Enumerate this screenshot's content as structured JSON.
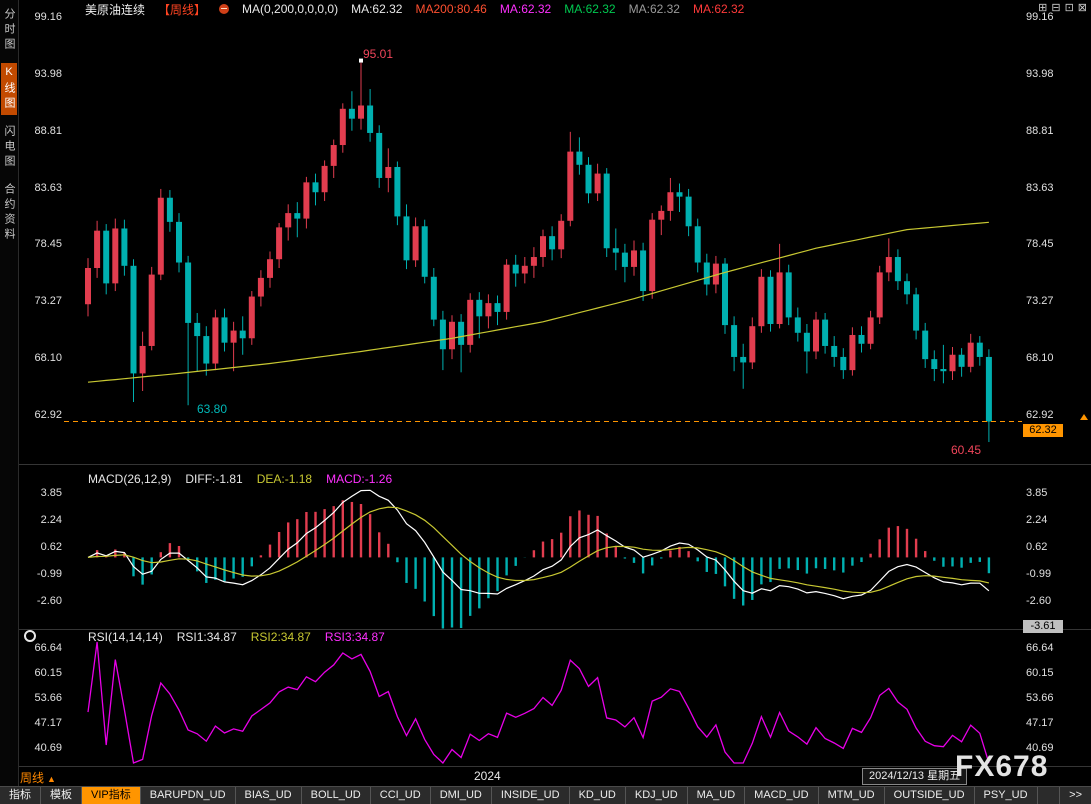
{
  "sidebar": {
    "items": [
      {
        "key": "time-chart",
        "label": "分时图",
        "active": false
      },
      {
        "key": "kline-chart",
        "label": "K线图",
        "active": true
      },
      {
        "key": "lightning-chart",
        "label": "闪电图",
        "active": false
      },
      {
        "key": "contract-info",
        "label": "合约资料",
        "active": false
      }
    ]
  },
  "titlebar": {
    "symbol": "美原油连续",
    "period": "【周线】",
    "ma_params": "MA(0,200,0,0,0,0)",
    "ma_values": [
      {
        "label": "MA:62.32",
        "color": "#e8e8e8"
      },
      {
        "label": "MA200:80.46",
        "color": "#ff5030"
      },
      {
        "label": "MA:62.32",
        "color": "#ff30ff"
      },
      {
        "label": "MA:62.32",
        "color": "#00c850"
      },
      {
        "label": "MA:62.32",
        "color": "#9a9a9a"
      },
      {
        "label": "MA:62.32",
        "color": "#ff3a3a"
      }
    ],
    "window_icons": [
      {
        "name": "quad-grid-layout-icon",
        "glyph": "⊞"
      },
      {
        "name": "horizontal-split-layout-icon",
        "glyph": "⊟"
      },
      {
        "name": "vertical-split-layout-icon",
        "glyph": "⊡"
      },
      {
        "name": "single-pane-layout-icon",
        "glyph": "⊠"
      }
    ]
  },
  "colors": {
    "up": "#e23d4f",
    "down": "#00b0b0",
    "ma200_line": "#c8c832",
    "diff_line": "#ffffff",
    "dea_line": "#c8c832",
    "rsi_line": "#e800e8",
    "accent": "#ff9500"
  },
  "chart_data": [
    {
      "type": "candlestick",
      "title": "美原油连续 周线",
      "x_tick": "2024",
      "ylim": [
        60,
        100
      ],
      "y_ticks": [
        "99.16",
        "93.98",
        "88.81",
        "83.63",
        "78.45",
        "73.27",
        "68.10",
        "62.92"
      ],
      "annotations": {
        "high": "95.01",
        "low": "63.80",
        "last_low": "60.45",
        "last_price": "62.32"
      },
      "ma200": {
        "period": 200,
        "last": "80.46",
        "points": [
          [
            0,
            65.9
          ],
          [
            10,
            66.7
          ],
          [
            20,
            67.6
          ],
          [
            30,
            68.7
          ],
          [
            40,
            69.9
          ],
          [
            50,
            71.4
          ],
          [
            60,
            73.5
          ],
          [
            70,
            75.9
          ],
          [
            80,
            78.1
          ],
          [
            90,
            79.8
          ],
          [
            99,
            80.46
          ]
        ]
      },
      "candles": [
        [
          73.0,
          77.2,
          71.9,
          76.3
        ],
        [
          76.3,
          80.6,
          75.4,
          79.7
        ],
        [
          79.7,
          80.3,
          73.9,
          74.9
        ],
        [
          74.9,
          80.8,
          74.2,
          79.9
        ],
        [
          79.9,
          80.7,
          75.6,
          76.5
        ],
        [
          76.5,
          77.1,
          64.1,
          66.7
        ],
        [
          66.7,
          70.5,
          65.1,
          69.2
        ],
        [
          69.2,
          76.4,
          68.8,
          75.7
        ],
        [
          75.7,
          83.5,
          75.2,
          82.7
        ],
        [
          82.7,
          83.4,
          79.6,
          80.5
        ],
        [
          80.5,
          81.3,
          75.9,
          76.8
        ],
        [
          76.8,
          77.4,
          63.8,
          71.3
        ],
        [
          71.3,
          72.2,
          66.9,
          70.1
        ],
        [
          70.1,
          71.0,
          66.5,
          67.6
        ],
        [
          67.6,
          72.5,
          67.0,
          71.8
        ],
        [
          71.8,
          72.6,
          68.7,
          69.5
        ],
        [
          69.5,
          71.4,
          66.9,
          70.6
        ],
        [
          70.6,
          71.9,
          68.4,
          69.9
        ],
        [
          69.9,
          74.2,
          69.3,
          73.7
        ],
        [
          73.7,
          76.1,
          72.8,
          75.4
        ],
        [
          75.4,
          77.8,
          74.5,
          77.1
        ],
        [
          77.1,
          80.4,
          76.3,
          80.0
        ],
        [
          80.0,
          82.1,
          78.8,
          81.3
        ],
        [
          81.3,
          82.3,
          79.1,
          80.8
        ],
        [
          80.8,
          84.6,
          79.9,
          84.1
        ],
        [
          84.1,
          84.9,
          82.0,
          83.2
        ],
        [
          83.2,
          86.1,
          82.4,
          85.6
        ],
        [
          85.6,
          88.0,
          84.5,
          87.5
        ],
        [
          87.5,
          91.3,
          86.8,
          90.8
        ],
        [
          90.8,
          92.4,
          88.8,
          89.9
        ],
        [
          89.9,
          95.01,
          88.9,
          91.1
        ],
        [
          91.1,
          92.6,
          87.8,
          88.6
        ],
        [
          88.6,
          89.3,
          83.6,
          84.5
        ],
        [
          84.5,
          87.2,
          83.2,
          85.5
        ],
        [
          85.5,
          86.0,
          80.2,
          81.0
        ],
        [
          81.0,
          82.1,
          76.2,
          77.0
        ],
        [
          77.0,
          80.9,
          76.4,
          80.1
        ],
        [
          80.1,
          80.7,
          74.9,
          75.5
        ],
        [
          75.5,
          76.3,
          71.0,
          71.6
        ],
        [
          71.6,
          72.4,
          67.0,
          68.9
        ],
        [
          68.9,
          72.0,
          68.0,
          71.4
        ],
        [
          71.4,
          72.1,
          66.8,
          69.3
        ],
        [
          69.3,
          74.0,
          68.6,
          73.4
        ],
        [
          73.4,
          74.1,
          69.9,
          71.9
        ],
        [
          71.9,
          73.9,
          70.8,
          73.1
        ],
        [
          73.1,
          73.8,
          71.1,
          72.3
        ],
        [
          72.3,
          77.1,
          71.6,
          76.6
        ],
        [
          76.6,
          77.5,
          74.6,
          75.8
        ],
        [
          75.8,
          77.3,
          74.9,
          76.5
        ],
        [
          76.5,
          78.2,
          75.4,
          77.3
        ],
        [
          77.3,
          79.8,
          76.4,
          79.2
        ],
        [
          79.2,
          80.1,
          77.0,
          78.0
        ],
        [
          78.0,
          81.2,
          77.2,
          80.6
        ],
        [
          80.6,
          88.7,
          80.1,
          86.9
        ],
        [
          86.9,
          88.2,
          84.8,
          85.7
        ],
        [
          85.7,
          86.4,
          82.2,
          83.1
        ],
        [
          83.1,
          85.8,
          82.4,
          84.9
        ],
        [
          84.9,
          85.4,
          77.3,
          78.1
        ],
        [
          78.1,
          79.9,
          76.1,
          77.7
        ],
        [
          77.7,
          78.5,
          75.0,
          76.4
        ],
        [
          76.4,
          78.8,
          75.6,
          77.9
        ],
        [
          77.9,
          78.6,
          73.3,
          74.2
        ],
        [
          74.2,
          81.3,
          73.5,
          80.7
        ],
        [
          80.7,
          82.0,
          79.3,
          81.5
        ],
        [
          81.5,
          84.5,
          80.6,
          83.2
        ],
        [
          83.2,
          84.0,
          81.4,
          82.8
        ],
        [
          82.8,
          83.5,
          79.2,
          80.1
        ],
        [
          80.1,
          80.8,
          75.9,
          76.8
        ],
        [
          76.8,
          77.6,
          73.8,
          74.8
        ],
        [
          74.8,
          77.4,
          74.0,
          76.7
        ],
        [
          76.7,
          77.2,
          70.3,
          71.1
        ],
        [
          71.1,
          71.9,
          66.9,
          68.2
        ],
        [
          68.2,
          69.4,
          65.3,
          67.7
        ],
        [
          67.7,
          71.8,
          67.1,
          71.0
        ],
        [
          71.0,
          76.2,
          70.4,
          75.5
        ],
        [
          75.5,
          76.1,
          70.5,
          71.2
        ],
        [
          71.2,
          78.5,
          70.8,
          75.9
        ],
        [
          75.9,
          76.6,
          71.1,
          71.8
        ],
        [
          71.8,
          72.7,
          69.6,
          70.4
        ],
        [
          70.4,
          71.2,
          66.7,
          68.7
        ],
        [
          68.7,
          72.3,
          68.0,
          71.6
        ],
        [
          71.6,
          72.2,
          68.5,
          69.2
        ],
        [
          69.2,
          70.1,
          67.3,
          68.2
        ],
        [
          68.2,
          69.0,
          66.2,
          67.0
        ],
        [
          67.0,
          70.9,
          66.5,
          70.2
        ],
        [
          70.2,
          71.0,
          68.6,
          69.4
        ],
        [
          69.4,
          72.4,
          68.9,
          71.8
        ],
        [
          71.8,
          76.5,
          71.2,
          75.9
        ],
        [
          75.9,
          79.0,
          75.1,
          77.3
        ],
        [
          77.3,
          78.0,
          74.3,
          75.1
        ],
        [
          75.1,
          75.8,
          73.0,
          73.9
        ],
        [
          73.9,
          74.5,
          69.8,
          70.6
        ],
        [
          70.6,
          71.3,
          67.2,
          68.0
        ],
        [
          68.0,
          68.8,
          66.0,
          67.1
        ],
        [
          67.1,
          69.3,
          65.8,
          66.9
        ],
        [
          66.9,
          69.1,
          66.1,
          68.4
        ],
        [
          68.4,
          69.0,
          66.4,
          67.3
        ],
        [
          67.3,
          70.3,
          66.8,
          69.5
        ],
        [
          69.5,
          70.1,
          67.4,
          68.2
        ],
        [
          68.2,
          68.9,
          60.45,
          62.32
        ]
      ]
    },
    {
      "type": "bar",
      "name": "MACD",
      "labels": {
        "title": "MACD(26,12,9)",
        "diff": "DIFF:-1.81",
        "dea": "DEA:-1.18",
        "macd": "MACD:-1.26"
      },
      "y_ticks": [
        "3.85",
        "2.24",
        "0.62",
        "-0.99",
        "-2.60"
      ],
      "min_badge": "-3.61",
      "ylim": [
        -3.61,
        3.85
      ],
      "computed_from": "candles closes, EMA(12,26), DEA=EMA9(DIFF), MACD=2*(DIFF-DEA)"
    },
    {
      "type": "line",
      "name": "RSI",
      "labels": {
        "title": "RSI(14,14,14)",
        "rsi1": "RSI1:34.87",
        "rsi2": "RSI2:34.87",
        "rsi3": "RSI3:34.87"
      },
      "y_ticks": [
        "66.64",
        "60.15",
        "53.66",
        "47.17",
        "40.69"
      ],
      "ylim": [
        36,
        70
      ],
      "computed_from": "candles closes, Wilder RSI(14)"
    }
  ],
  "footer": {
    "period_label": "周线",
    "period_arrow": "▲",
    "date": "2024/12/13 星期五",
    "watermark": "FX678",
    "tabs": [
      {
        "key": "indicators",
        "label": "指标"
      },
      {
        "key": "templates",
        "label": "模板"
      },
      {
        "key": "vip-indicators",
        "label": "VIP指标",
        "highlight": true
      },
      {
        "key": "barupdn-ud",
        "label": "BARUPDN_UD"
      },
      {
        "key": "bias-ud",
        "label": "BIAS_UD"
      },
      {
        "key": "boll-ud",
        "label": "BOLL_UD"
      },
      {
        "key": "cci-ud",
        "label": "CCI_UD"
      },
      {
        "key": "dmi-ud",
        "label": "DMI_UD"
      },
      {
        "key": "inside-ud",
        "label": "INSIDE_UD"
      },
      {
        "key": "kd-ud",
        "label": "KD_UD"
      },
      {
        "key": "kdj-ud",
        "label": "KDJ_UD"
      },
      {
        "key": "ma-ud",
        "label": "MA_UD"
      },
      {
        "key": "macd-ud",
        "label": "MACD_UD"
      },
      {
        "key": "mtm-ud",
        "label": "MTM_UD"
      },
      {
        "key": "outside-ud",
        "label": "OUTSIDE_UD"
      },
      {
        "key": "psy-ud",
        "label": "PSY_UD"
      },
      {
        "key": "more",
        "label": ">>",
        "more": true
      }
    ]
  }
}
